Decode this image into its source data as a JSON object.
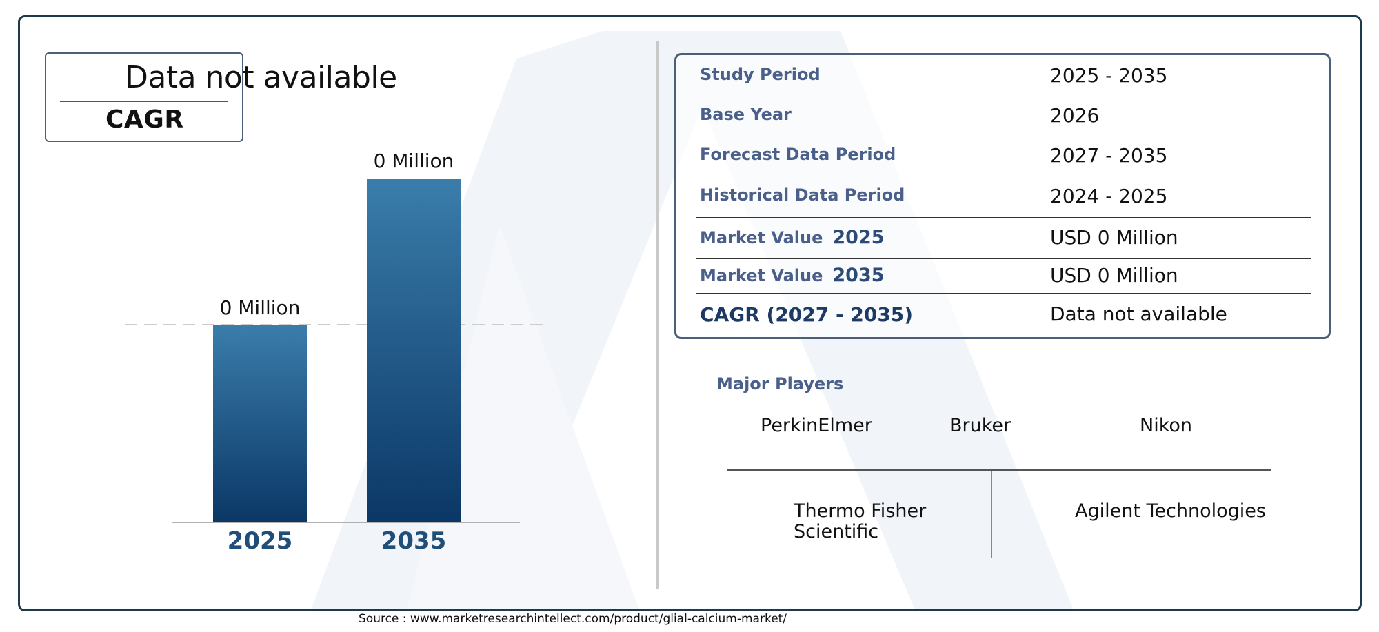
{
  "cagr_box": {
    "value": "Data not available",
    "label": "CAGR"
  },
  "chart_data": {
    "type": "bar",
    "categories": [
      "2025",
      "2035"
    ],
    "values": [
      0,
      0
    ],
    "data_labels": [
      "0 Million",
      "0 Million"
    ],
    "grid": false,
    "colors": {
      "bar_top": "#3a7dab",
      "bar_bottom": "#0b3766",
      "tick_label": "#1f4e79",
      "reference_line": "#cccccc"
    }
  },
  "info_table": [
    {
      "label": "Study Period",
      "year": "",
      "value": "2025 - 2035"
    },
    {
      "label": "Base Year",
      "year": "",
      "value": "2026"
    },
    {
      "label": "Forecast Data Period",
      "year": "",
      "value": "2027 - 2035"
    },
    {
      "label": "Historical Data Period",
      "year": "",
      "value": "2024 - 2025"
    },
    {
      "label": "Market Value",
      "year": "2025",
      "value": "USD 0 Million"
    },
    {
      "label": "Market Value",
      "year": "2035",
      "value": "USD 0 Million"
    },
    {
      "label": "CAGR (2027 - 2035)",
      "year": "",
      "value": "Data not available"
    }
  ],
  "major_players": {
    "title": "Major Players",
    "names": [
      "PerkinElmer",
      "Bruker",
      "Nikon",
      "Thermo Fisher Scientific",
      "Agilent Technologies"
    ]
  },
  "source": "Source : www.marketresearchintellect.com/product/glial-calcium-market/"
}
